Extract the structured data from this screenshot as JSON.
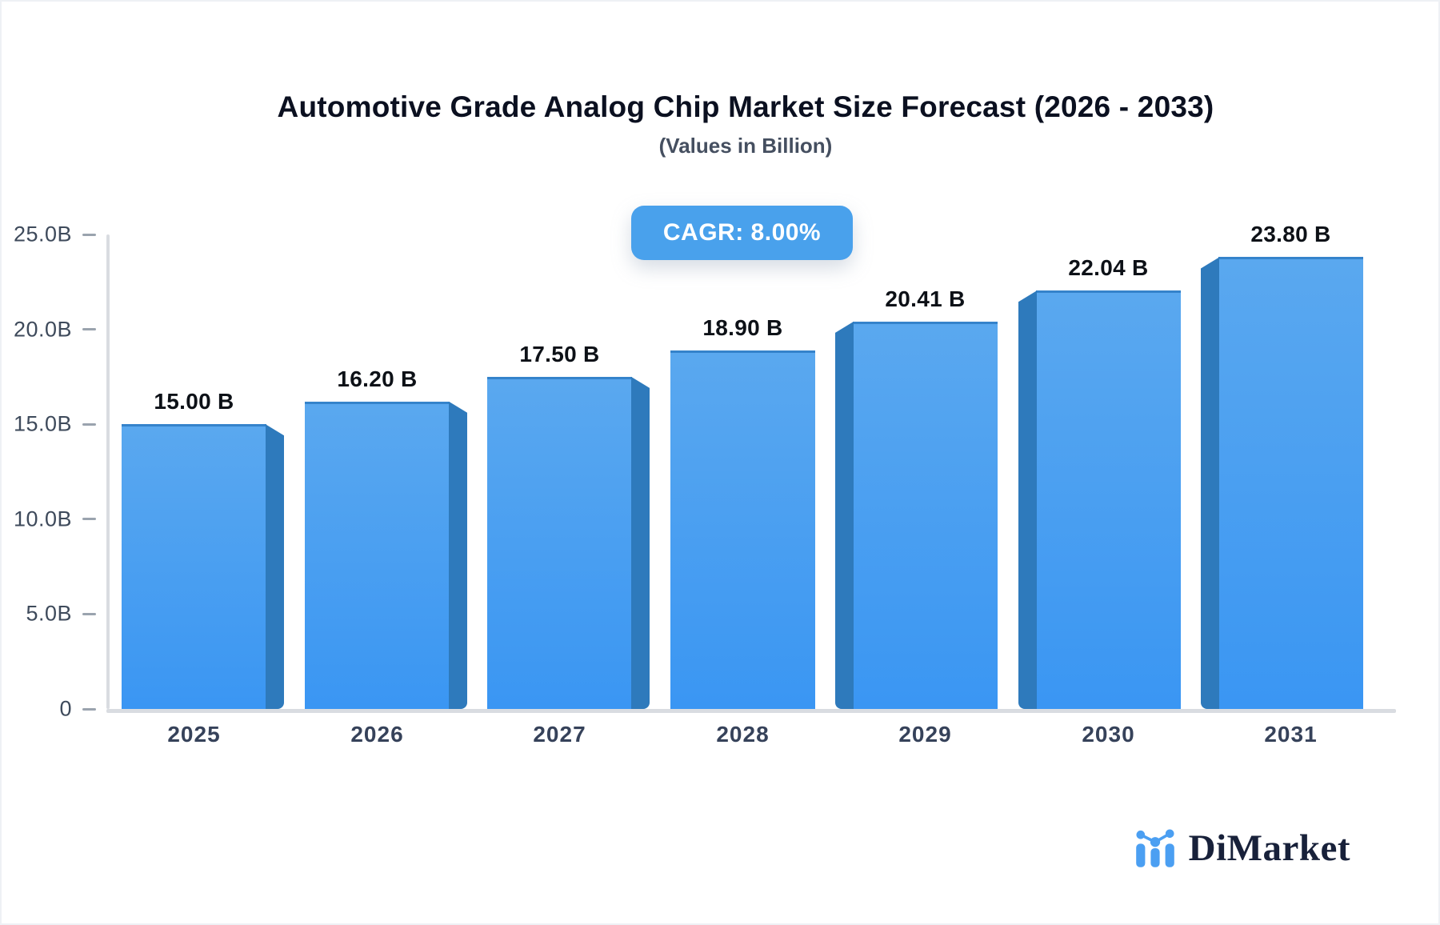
{
  "header": {
    "title": "Automotive Grade Analog Chip Market Size Forecast (2026 - 2033)",
    "subtitle": "(Values in Billion)"
  },
  "badge": {
    "label": "CAGR: 8.00%"
  },
  "chart_data": {
    "type": "bar",
    "title": "Automotive Grade Analog Chip Market Size Forecast (2026 - 2033)",
    "subtitle": "(Values in Billion)",
    "cagr_annotation": "CAGR: 8.00%",
    "categories": [
      "2025",
      "2026",
      "2027",
      "2028",
      "2029",
      "2030",
      "2031"
    ],
    "values": [
      15.0,
      16.2,
      17.5,
      18.9,
      20.41,
      22.04,
      23.8
    ],
    "value_labels": [
      "15.00 B",
      "16.20 B",
      "17.50 B",
      "18.90 B",
      "20.41 B",
      "22.04 B",
      "23.80 B"
    ],
    "xlabel": "",
    "ylabel": "",
    "ylim": [
      0,
      25
    ],
    "yticks": [
      {
        "value": 25,
        "label": "25.0B"
      },
      {
        "value": 20,
        "label": "20.0B"
      },
      {
        "value": 15,
        "label": "15.0B"
      },
      {
        "value": 10,
        "label": "10.0B"
      },
      {
        "value": 5,
        "label": "5.0B"
      },
      {
        "value": 0,
        "label": "0"
      }
    ],
    "grid": false,
    "legend": false
  },
  "branding": {
    "name": "DiMarket",
    "icon": "bar-chart-logo-icon"
  },
  "colors": {
    "bar_face_top": "#5AA8EF",
    "bar_face_bottom": "#3A96F3",
    "bar_top_edge": "#3583CB",
    "bar_side": "#2E7ABC",
    "badge_bg": "#49A1EC",
    "axis_line": "#D9DCE1",
    "tick_dash": "#9AA3AE",
    "title_text": "#0B1020",
    "subtitle_text": "#454F60",
    "axis_label": "#3E4A5B",
    "year_label": "#36425A",
    "value_label": "#0D1117",
    "logo_navy": "#18213A",
    "logo_blue": "#4B9FF2"
  }
}
